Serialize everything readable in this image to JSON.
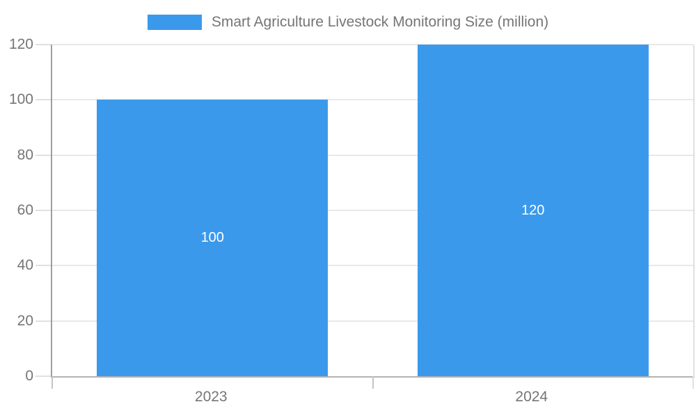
{
  "legend": {
    "position": "top"
  },
  "chart_data": {
    "type": "bar",
    "title": "Smart Agriculture Livestock Monitoring Size (million)",
    "categories": [
      "2023",
      "2024"
    ],
    "series": [
      {
        "name": "Smart Agriculture Livestock Monitoring Size (million)",
        "values": [
          100,
          120
        ],
        "color": "#3B99EC"
      }
    ],
    "xlabel": "",
    "ylabel": "",
    "ylim": [
      0,
      120
    ],
    "yticks": [
      0,
      20,
      40,
      60,
      80,
      100,
      120
    ],
    "grid": true,
    "legend_position": "top",
    "data_labels": {
      "visible": true,
      "color": "#ffffff",
      "values": [
        "100",
        "120"
      ]
    }
  },
  "colors": {
    "accent": "#3B99EC",
    "text": "#757575",
    "gridline": "#e8e8e8",
    "axis_left": "#9e9e9e",
    "axis_bottom": "#b3b3b3",
    "background": "#ffffff"
  }
}
